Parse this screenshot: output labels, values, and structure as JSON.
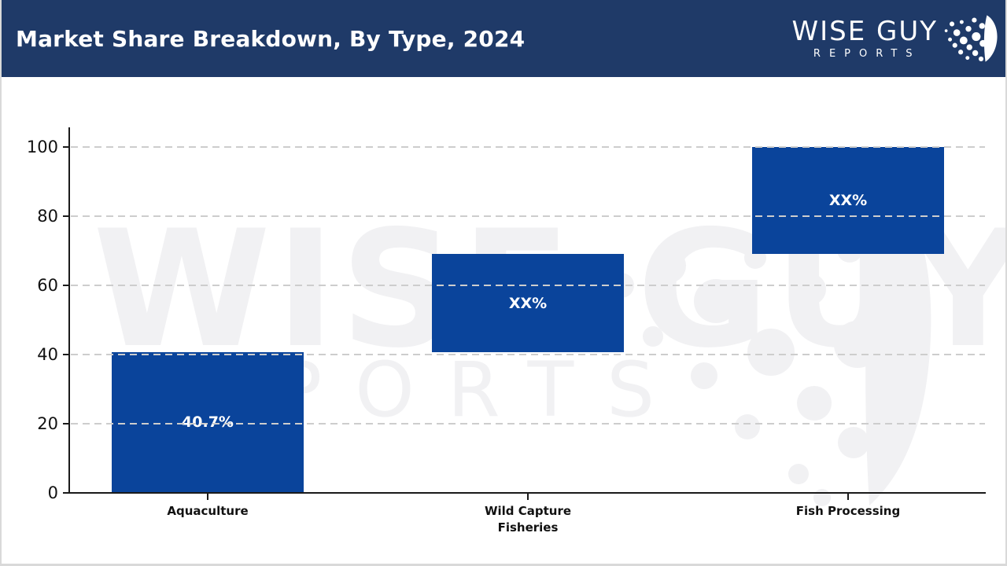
{
  "header": {
    "title": "Market Share Breakdown, By Type, 2024",
    "logo": {
      "name": "WISE GUY",
      "sub": "REPORTS"
    }
  },
  "watermark": {
    "name": "WISE GUY",
    "sub": "REPORTS"
  },
  "colors": {
    "header_bg": "#1f3a68",
    "bar": "#0a449b",
    "grid": "#cdcdcd",
    "axis": "#1a1a1a",
    "bar_label": "#ffffff",
    "watermark": "#f1f1f3"
  },
  "chart_data": {
    "type": "bar",
    "subtype": "waterfall",
    "title": "Market Share Breakdown, By Type, 2024",
    "categories": [
      "Aquaculture",
      "Wild Capture\nFisheries",
      "Fish Processing"
    ],
    "series": [
      {
        "name": "Market share (%)",
        "segments": [
          {
            "category": "Aquaculture",
            "start": 0,
            "end": 40.7,
            "label": "40.7%"
          },
          {
            "category": "Wild Capture Fisheries",
            "start": 40.7,
            "end": 69,
            "label": "XX%"
          },
          {
            "category": "Fish Processing",
            "start": 69,
            "end": 100,
            "label": "XX%"
          }
        ]
      }
    ],
    "xlabel": "",
    "ylabel": "",
    "ylim": [
      0,
      100
    ],
    "yticks": [
      0,
      20,
      40,
      60,
      80,
      100
    ],
    "grid": "horizontal-dashed",
    "legend": false
  }
}
